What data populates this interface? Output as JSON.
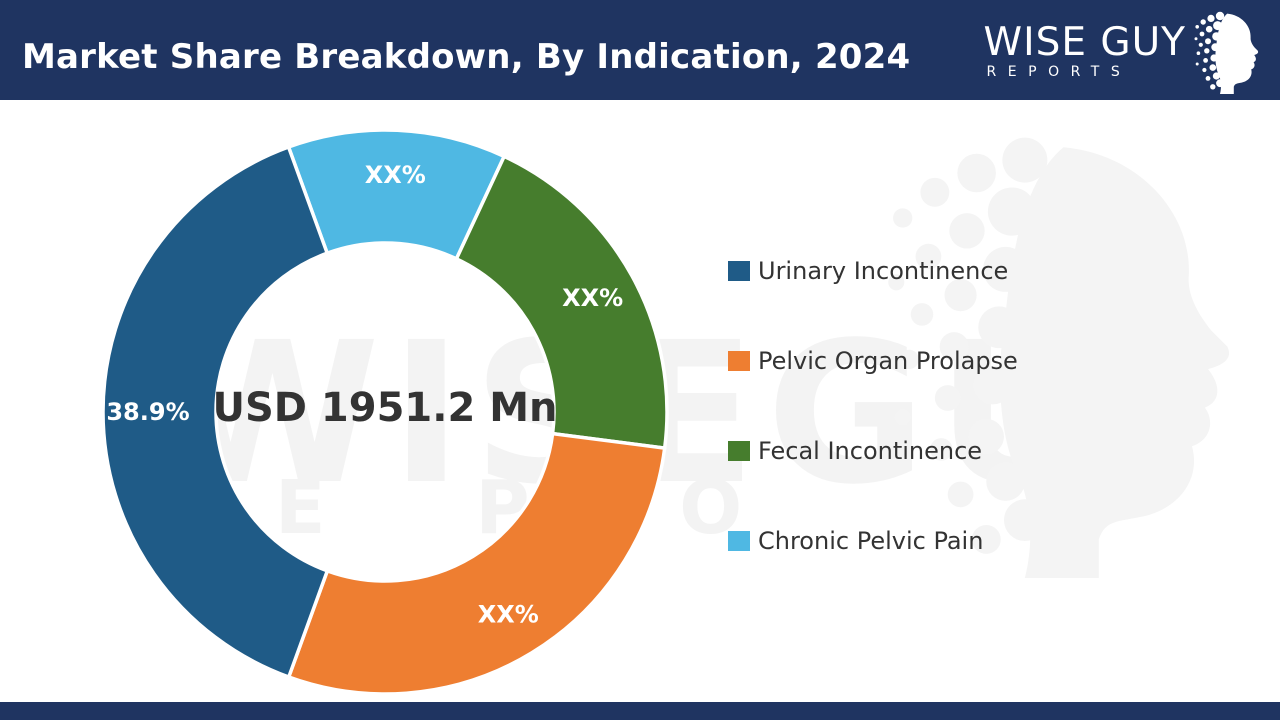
{
  "header": {
    "title": "Market Share Breakdown, By Indication, 2024",
    "bg_color": "#1f3461",
    "logo": {
      "line1": "WISE GUY",
      "line2": "REPORTS"
    }
  },
  "chart_data": {
    "type": "donut",
    "title": "Market Share Breakdown, By Indication, 2024",
    "center_label": "USD 1951.2 Mn",
    "start_angle_deg": -20,
    "inner_radius_ratio": 0.6,
    "gap_color": "#ffffff",
    "segments": [
      {
        "name": "Chronic Pelvic Pain",
        "pct": 12.5,
        "display_label": "XX%",
        "color": "#4fb8e3"
      },
      {
        "name": "Fecal Incontinence",
        "pct": 20.1,
        "display_label": "XX%",
        "color": "#467d2d"
      },
      {
        "name": "Pelvic Organ Prolapse",
        "pct": 28.5,
        "display_label": "XX%",
        "color": "#ee7e31"
      },
      {
        "name": "Urinary Incontinence",
        "pct": 38.9,
        "display_label": "38.9%",
        "color": "#1f5b87"
      }
    ]
  },
  "legend": {
    "items": [
      {
        "label": "Urinary Incontinence",
        "color": "#1f5b87"
      },
      {
        "label": "Pelvic Organ Prolapse",
        "color": "#ee7e31"
      },
      {
        "label": "Fecal Incontinence",
        "color": "#467d2d"
      },
      {
        "label": "Chronic Pelvic Pain",
        "color": "#4fb8e3"
      }
    ]
  },
  "watermark": {
    "line1": "WISEGU",
    "line2": "E P O"
  }
}
